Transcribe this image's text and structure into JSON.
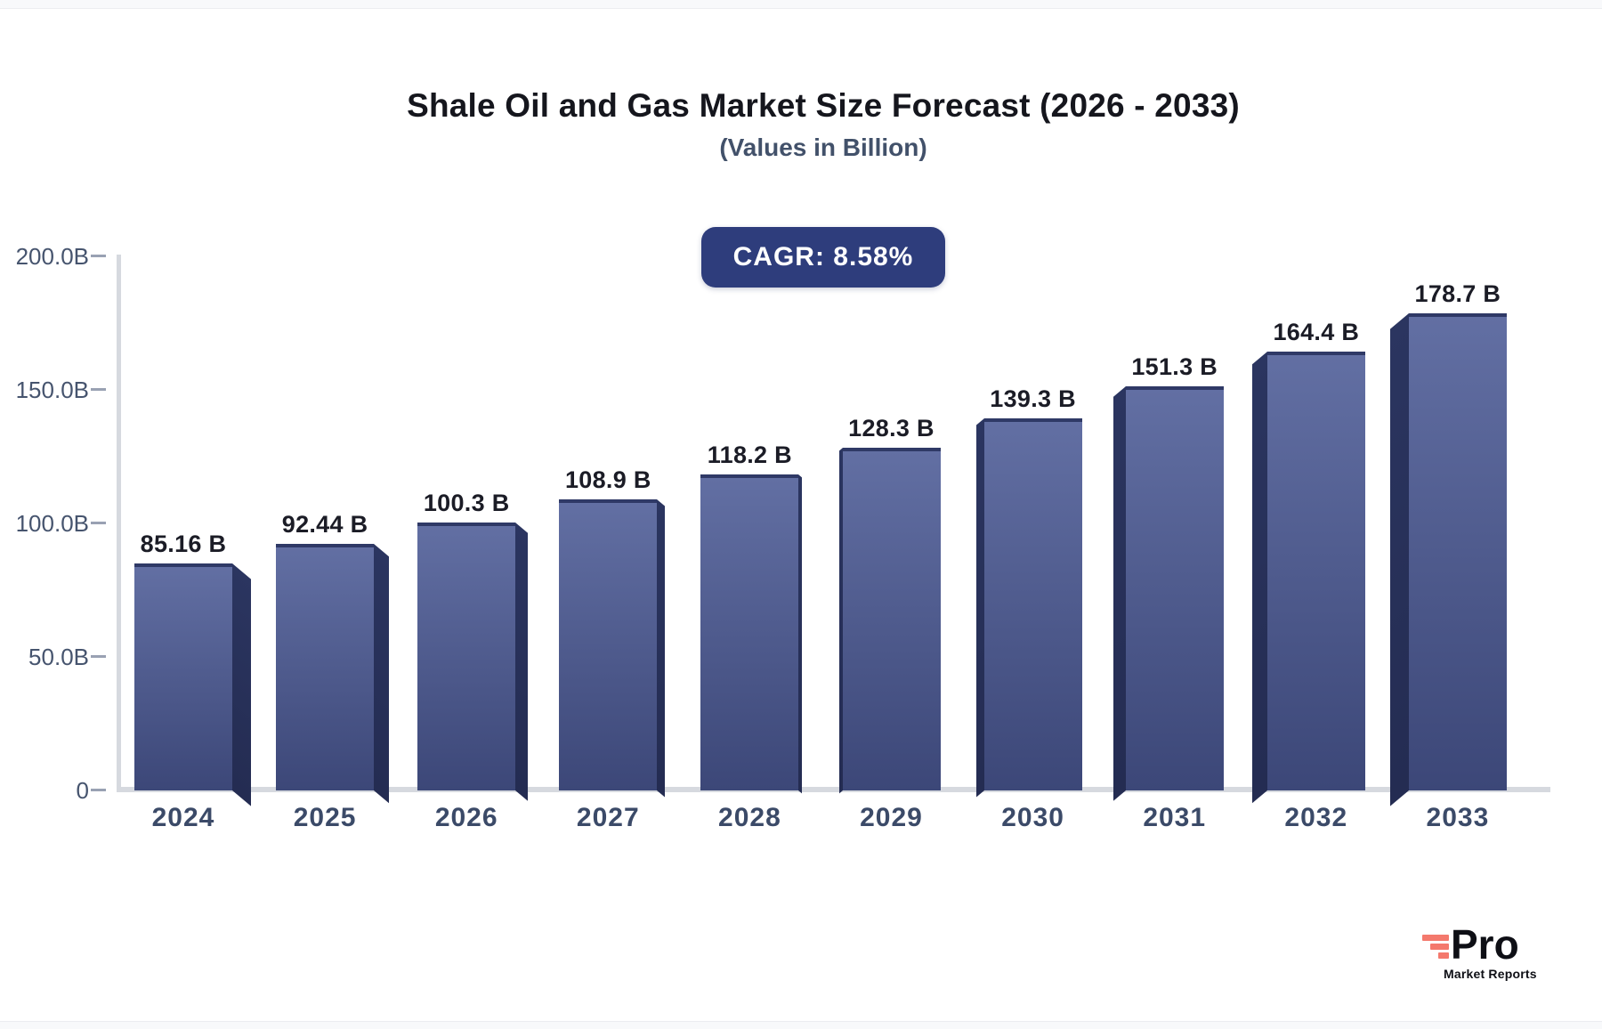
{
  "header": {
    "title": "Shale Oil and Gas Market Size Forecast (2026 - 2033)",
    "subtitle": "(Values in Billion)",
    "cagr_badge": "CAGR: 8.58%"
  },
  "chart_data": {
    "type": "bar",
    "title": "Shale Oil and Gas Market Size Forecast (2026 - 2033)",
    "subtitle": "(Values in Billion)",
    "cagr": "8.58%",
    "categories": [
      "2024",
      "2025",
      "2026",
      "2027",
      "2028",
      "2029",
      "2030",
      "2031",
      "2032",
      "2033"
    ],
    "values": [
      85.16,
      92.44,
      100.3,
      108.9,
      118.2,
      128.3,
      139.3,
      151.3,
      164.4,
      178.7
    ],
    "value_labels": [
      "85.16 B",
      "92.44 B",
      "100.3 B",
      "108.9 B",
      "118.2 B",
      "128.3 B",
      "139.3 B",
      "151.3 B",
      "164.4 B",
      "178.7 B"
    ],
    "unit": "Billion",
    "ylim": [
      0,
      200
    ],
    "y_ticks": [
      {
        "label": "200.0B",
        "value": 200
      },
      {
        "label": "150.0B",
        "value": 150
      },
      {
        "label": "100.0B",
        "value": 100
      },
      {
        "label": "50.0B",
        "value": 50
      },
      {
        "label": "0",
        "value": 0
      }
    ],
    "grid": false,
    "legend": "none",
    "bar_style": "3d-extruded-toward-center"
  },
  "colors": {
    "title_text": "#15161d",
    "subtitle_text": "#42516a",
    "badge_bg": "#2e3d7c",
    "bar_top": "#626fa3",
    "bar_bottom": "#3c4778",
    "bar_side_top": "#2b3560",
    "bar_side_bottom": "#242c52",
    "bar_edge": "#2f3966",
    "axis_line": "#d6d9df",
    "tick_mark": "#99a1b3",
    "tick_text": "#46546e",
    "year_text": "#3b4a68",
    "value_text": "#1b1c26",
    "logo_red": "#f4796d"
  },
  "logo": {
    "brand": "Pro",
    "tagline": "Market Reports"
  }
}
